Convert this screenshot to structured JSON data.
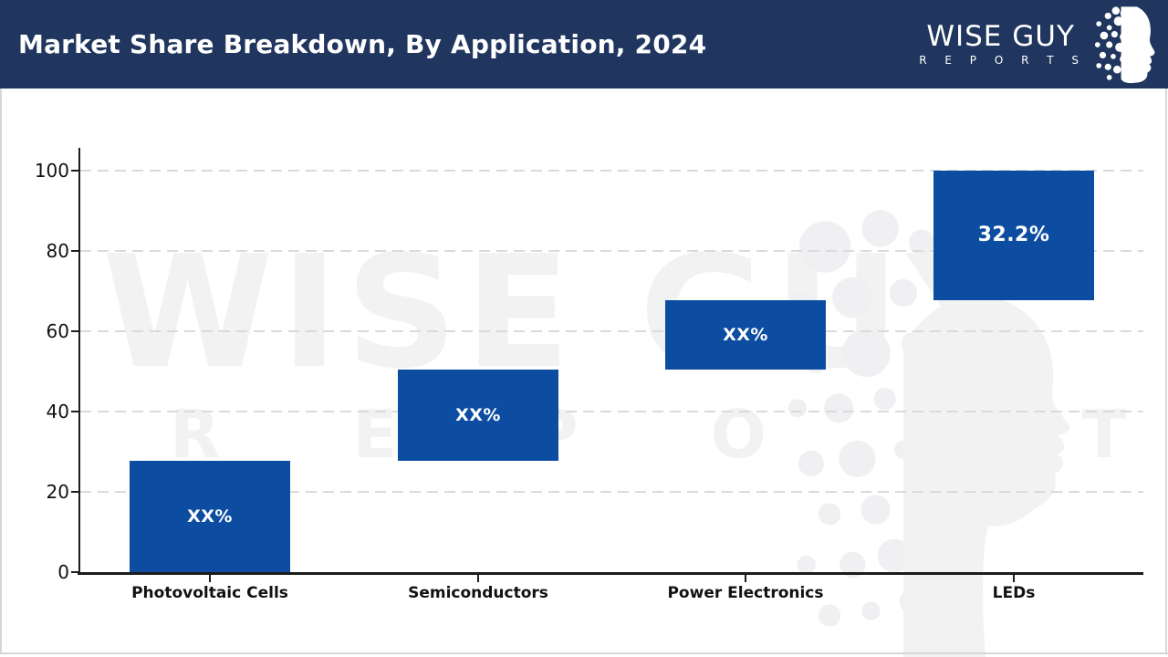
{
  "header": {
    "title": "Market Share Breakdown, By Application, 2024",
    "logo": {
      "line1": "WISE GUY",
      "line2": "R E P O R T S"
    }
  },
  "watermark": {
    "line1": "WISE GUY",
    "line2": "R E P O R T S"
  },
  "colors": {
    "header_bg": "#20365f",
    "bar_fill": "#0c4da1",
    "bar_label_text": "#ffffff",
    "grid": "#d9dadc",
    "axis": "#1c1c1c",
    "watermark": "#f2f2f3"
  },
  "chart_data": {
    "type": "bar",
    "subtype": "waterfall",
    "title": "Market Share Breakdown, By Application, 2024",
    "categories": [
      "Photovoltaic Cells",
      "Semiconductors",
      "Power Electronics",
      "LEDs"
    ],
    "values": [
      27.7,
      22.7,
      17.4,
      32.2
    ],
    "segments": [
      {
        "start": 0,
        "end": 27.7,
        "label": "XX%"
      },
      {
        "start": 27.7,
        "end": 50.4,
        "label": "XX%"
      },
      {
        "start": 50.4,
        "end": 67.8,
        "label": "XX%"
      },
      {
        "start": 67.8,
        "end": 100,
        "label": "32.2%"
      }
    ],
    "xlabel": "",
    "ylabel": "",
    "ylim": [
      0,
      100
    ],
    "yticks": [
      0,
      20,
      40,
      60,
      80,
      100
    ],
    "grid": "horizontal-dashed",
    "legend": "none"
  }
}
